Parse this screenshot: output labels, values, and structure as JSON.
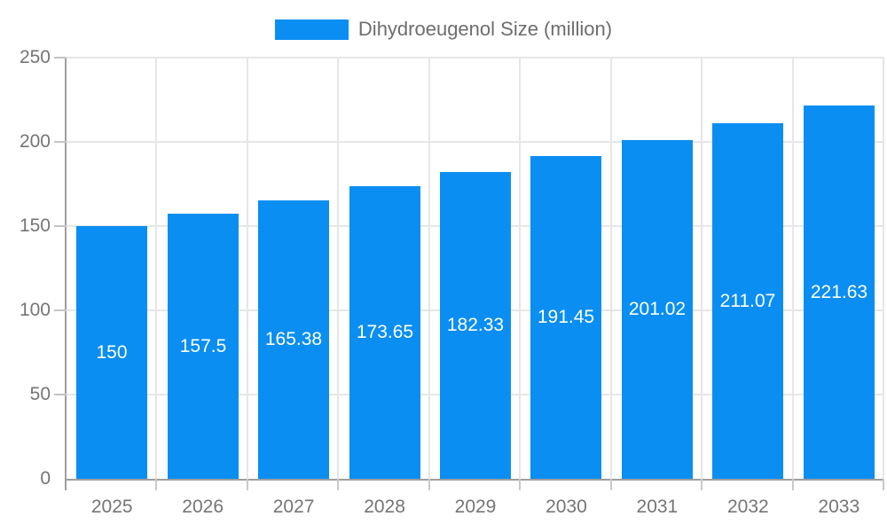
{
  "legend": {
    "label": "Dihydroeugenol Size (million)"
  },
  "colors": {
    "bar": "#0a8ef2",
    "grid": "#e6e6e6",
    "axis": "#9e9e9e",
    "tick": "#c9c9c9",
    "axis_text": "#757575",
    "value_text": "#ffffff",
    "background": "#ffffff"
  },
  "chart_data": {
    "type": "bar",
    "title": "",
    "series_name": "Dihydroeugenol Size (million)",
    "categories": [
      "2025",
      "2026",
      "2027",
      "2028",
      "2029",
      "2030",
      "2031",
      "2032",
      "2033"
    ],
    "values": [
      150,
      157.5,
      165.38,
      173.65,
      182.33,
      191.45,
      201.02,
      211.07,
      221.63
    ],
    "value_labels": [
      "150",
      "157.5",
      "165.38",
      "173.65",
      "182.33",
      "191.45",
      "201.02",
      "211.07",
      "221.63"
    ],
    "xlabel": "",
    "ylabel": "",
    "ylim": [
      0,
      250
    ],
    "yticks": [
      0,
      50,
      100,
      150,
      200,
      250
    ],
    "ytick_labels": [
      "0",
      "50",
      "100",
      "150",
      "200",
      "250"
    ],
    "grid": true,
    "legend_position": "top",
    "value_label_position": "inside-center"
  }
}
